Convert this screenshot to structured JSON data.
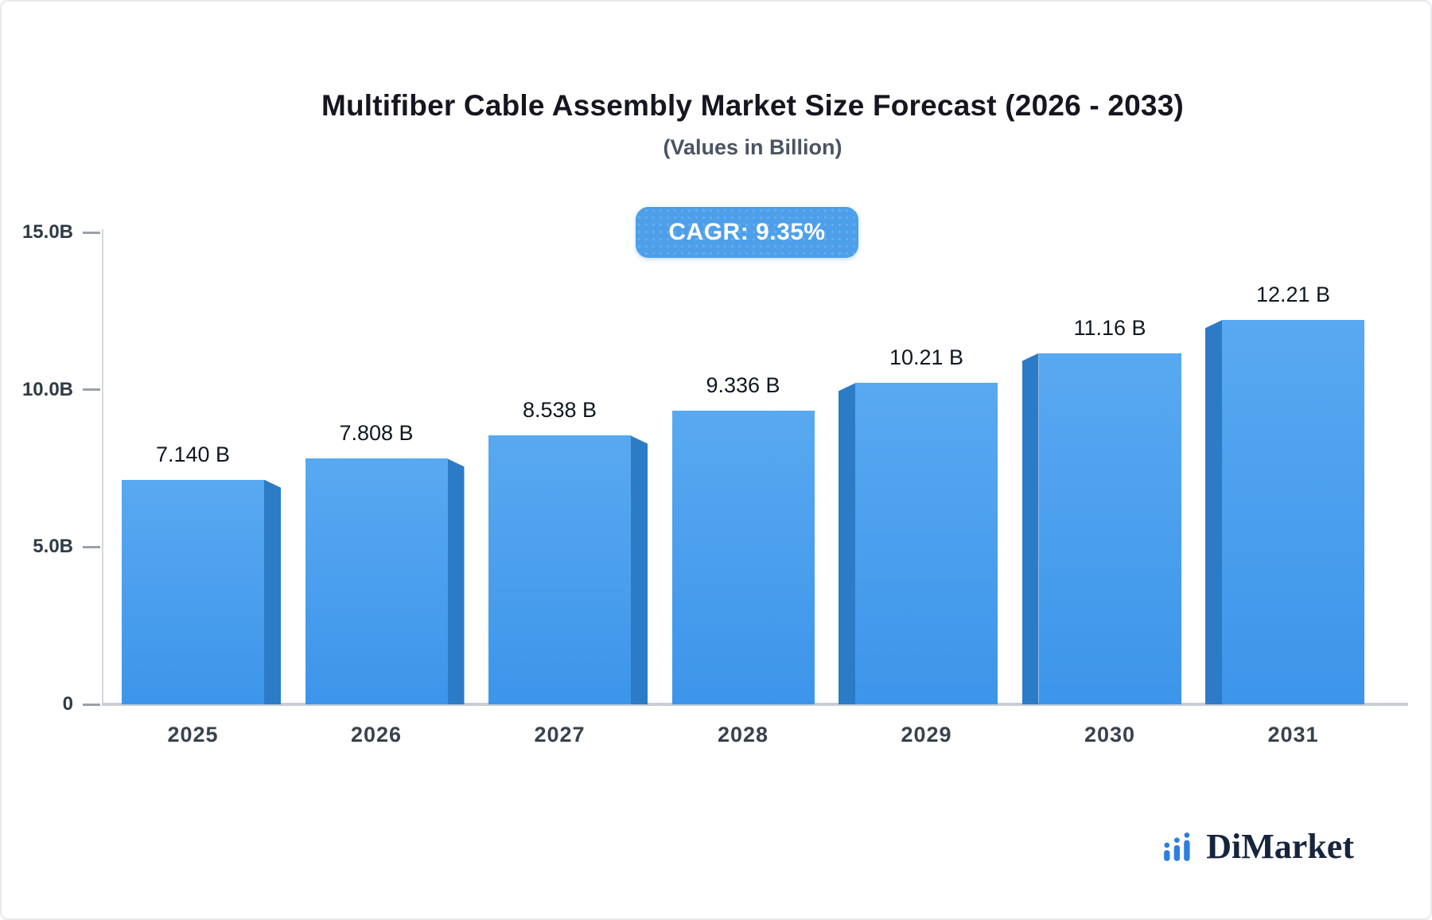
{
  "chart_data": {
    "type": "bar",
    "title": "Multifiber Cable Assembly Market Size Forecast (2026 - 2033)",
    "subtitle": "(Values in Billion)",
    "categories": [
      "2025",
      "2026",
      "2027",
      "2028",
      "2029",
      "2030",
      "2031"
    ],
    "values": [
      7.14,
      7.808,
      8.538,
      9.336,
      10.21,
      11.16,
      12.21
    ],
    "value_labels": [
      "7.140 B",
      "7.808 B",
      "8.538 B",
      "9.336 B",
      "10.21 B",
      "11.16 B",
      "12.21 B"
    ],
    "xlabel": "",
    "ylabel": "",
    "ylim": [
      0,
      15
    ],
    "y_ticks": [
      "15.0B",
      "10.0B",
      "5.0B",
      "0"
    ],
    "y_tick_values": [
      15,
      10,
      5,
      0
    ],
    "grid": "off",
    "legend": "none",
    "bar_color_top": "#58a9f1",
    "bar_color_bottom": "#3d95ea",
    "bar_side_color": "#2c7bc6"
  },
  "badge": {
    "label": "CAGR: 9.35%",
    "background": "#4d9fea",
    "text_color": "#ffffff"
  },
  "logo": {
    "text": "DiMarket",
    "icon": "bar-chart-icon",
    "icon_color": "#2d7ee0",
    "text_color": "#16243d"
  }
}
